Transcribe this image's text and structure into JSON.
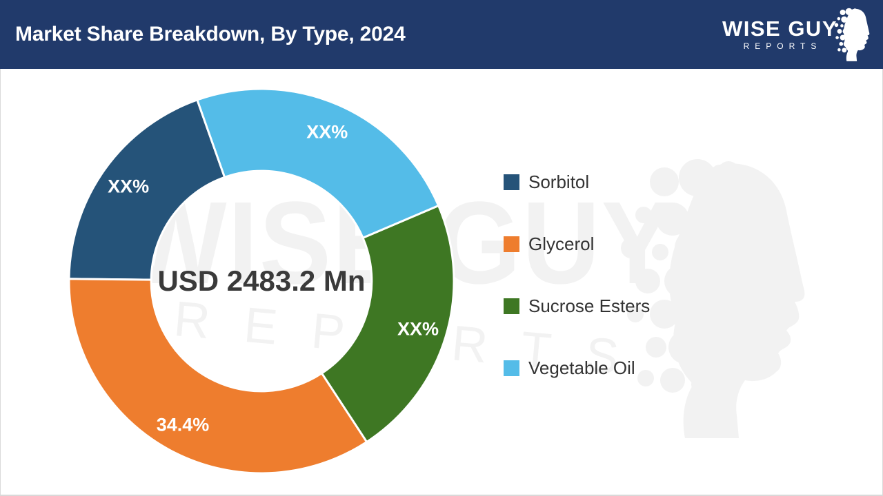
{
  "header": {
    "title": "Market Share Breakdown, By Type, 2024",
    "logo": {
      "line1": "WISE GUY",
      "line2": "REPORTS"
    }
  },
  "watermark": {
    "line1": "WISE GUY",
    "line2": "REPORTS"
  },
  "center_value": "USD 2483.2 Mn",
  "chart_data": {
    "type": "pie",
    "subtype": "donut",
    "title": "Market Share Breakdown, By Type, 2024",
    "center_label": "USD 2483.2 Mn",
    "start_angle_deg": 109.5,
    "direction": "counterclockwise",
    "inner_radius_ratio": 0.573,
    "legend_position": "right",
    "segments": [
      {
        "label": "Sorbitol",
        "display_value": "XX%",
        "value_pct": 19.4,
        "color": "#255379"
      },
      {
        "label": "Glycerol",
        "display_value": "34.4%",
        "value_pct": 34.4,
        "color": "#EE7D2E"
      },
      {
        "label": "Sucrose Esters",
        "display_value": "XX%",
        "value_pct": 22.2,
        "color": "#3E7723"
      },
      {
        "label": "Vegetable Oil",
        "display_value": "XX%",
        "value_pct": 24.0,
        "color": "#54BCE8"
      }
    ]
  },
  "colors": {
    "header_bg": "#213A6B",
    "header_text": "#FFFFFF",
    "center_text": "#3A3A3A",
    "legend_text": "#333333",
    "watermark": "#F2F2F2",
    "border": "#D9D9D9",
    "slice_gap": "#FFFFFF"
  }
}
